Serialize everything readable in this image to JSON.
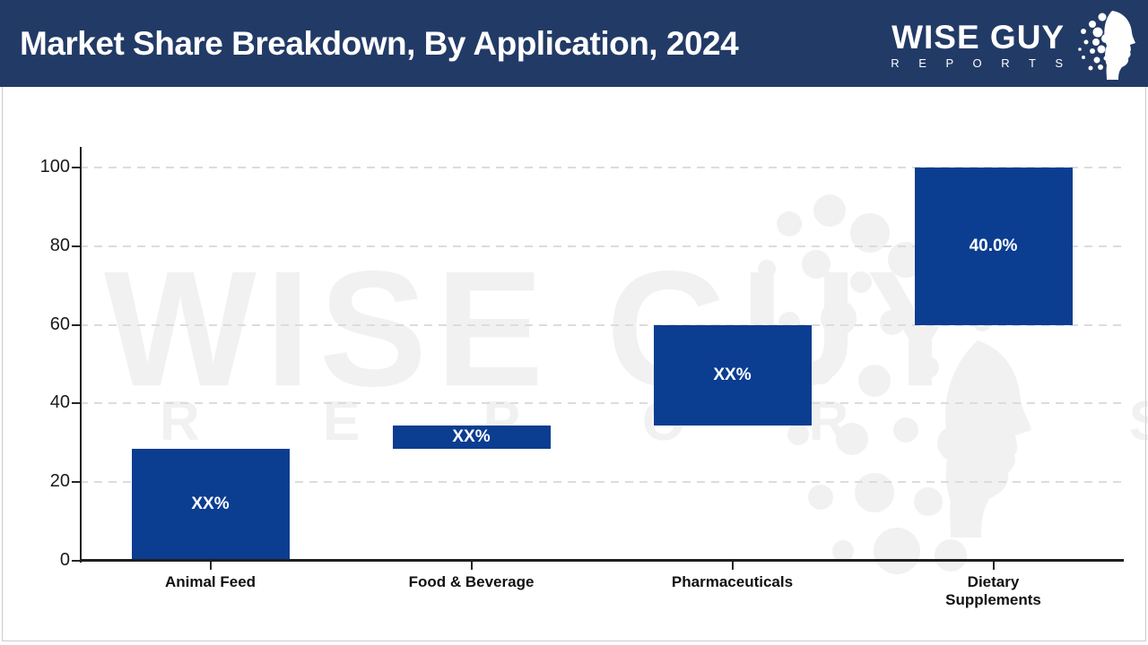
{
  "header": {
    "title": "Market Share Breakdown, By Application, 2024",
    "logo_line1": "WISE GUY",
    "logo_line2": "R E P O R T S"
  },
  "watermark": {
    "line1": "WISE GUY",
    "line2": "R E P O R T S"
  },
  "colors": {
    "header_bg": "#223A66",
    "bar": "#0B3D91",
    "grid": "#DCDCDC",
    "axis": "#262626",
    "bar_label_text": "#FFFFFF",
    "watermark": "#F1F1F1"
  },
  "chart_data": {
    "type": "bar",
    "subtype": "waterfall-floating-bars",
    "title": "Market Share Breakdown, By Application, 2024",
    "categories": [
      "Animal Feed",
      "Food & Beverage",
      "Pharmaceuticals",
      "Dietary Supplements"
    ],
    "categories_display": [
      "Animal Feed",
      "Food & Beverage",
      "Pharmaceuticals",
      "Dietary\nSupplements"
    ],
    "bars": [
      {
        "category": "Animal Feed",
        "start": 0,
        "end": 28.5,
        "label": "XX%"
      },
      {
        "category": "Food & Beverage",
        "start": 28.5,
        "end": 34.5,
        "label": "XX%"
      },
      {
        "category": "Pharmaceuticals",
        "start": 34.5,
        "end": 60,
        "label": "XX%"
      },
      {
        "category": "Dietary Supplements",
        "start": 60,
        "end": 100,
        "label": "40.0%"
      }
    ],
    "ylim": [
      0,
      100
    ],
    "yticks": [
      0,
      20,
      40,
      60,
      80,
      100
    ],
    "xlabel": "",
    "ylabel": "",
    "grid": "horizontal-dashed",
    "legend": "none"
  }
}
